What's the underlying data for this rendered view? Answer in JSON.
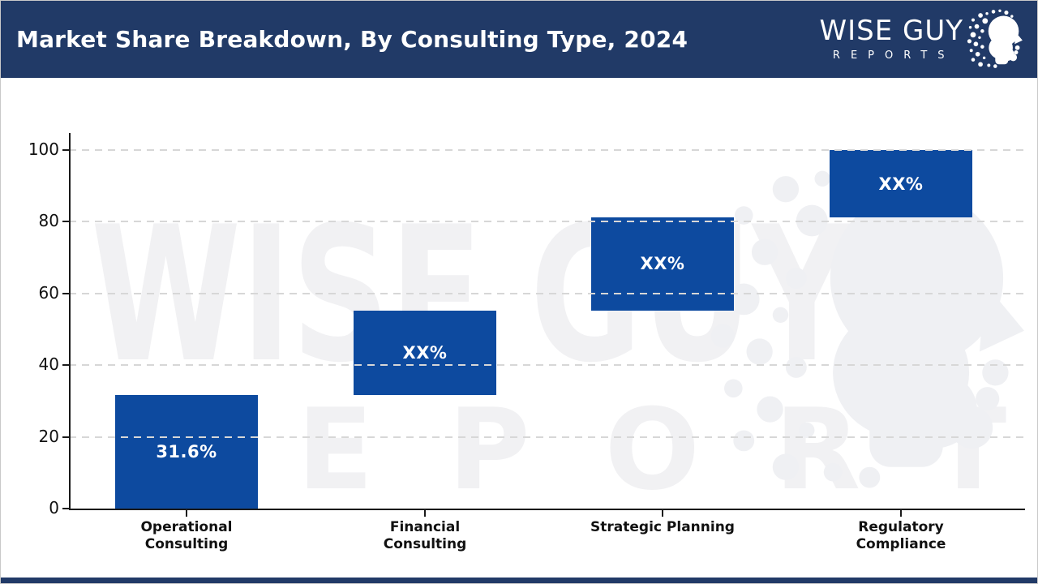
{
  "header": {
    "title": "Market Share Breakdown, By Consulting Type, 2024",
    "background": "#213a67",
    "logo": {
      "brand": "WISE GUY",
      "sub": "REPORTS"
    }
  },
  "watermark": {
    "brand": "WISE GUY",
    "sub": "REPORTS"
  },
  "chart_data": {
    "type": "bar",
    "variant": "waterfall",
    "title": "Market Share Breakdown, By Consulting Type, 2024",
    "categories": [
      "Operational Consulting",
      "Financial Consulting",
      "Strategic Planning",
      "Regulatory Compliance"
    ],
    "category_label_lines": [
      [
        "Operational",
        "Consulting"
      ],
      [
        "Financial",
        "Consulting"
      ],
      [
        "Strategic Planning"
      ],
      [
        "Regulatory",
        "Compliance"
      ]
    ],
    "segments": [
      {
        "category": "Operational Consulting",
        "start": 0,
        "end": 31.6,
        "label": "31.6%"
      },
      {
        "category": "Financial Consulting",
        "start": 31.6,
        "end": 55.3,
        "label": "XX%"
      },
      {
        "category": "Strategic Planning",
        "start": 55.3,
        "end": 81.2,
        "label": "XX%"
      },
      {
        "category": "Regulatory Compliance",
        "start": 81.2,
        "end": 100,
        "label": "XX%"
      }
    ],
    "y_ticks": [
      0,
      20,
      40,
      60,
      80,
      100
    ],
    "ylim": [
      0,
      105
    ],
    "xlabel": "",
    "ylabel": "",
    "grid": {
      "horizontal": true,
      "style": "dashed",
      "color": "#d7d7d7"
    },
    "bar_color": "#0d4a9f",
    "bar_label_color": "#ffffff",
    "legend": null
  },
  "footer": {
    "background": "#213a67"
  }
}
